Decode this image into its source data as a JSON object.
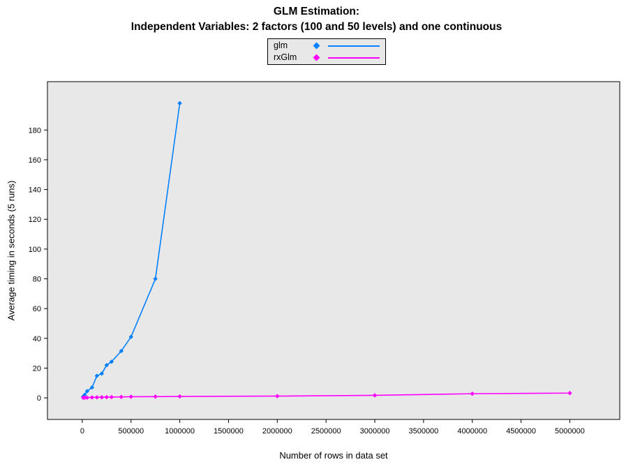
{
  "header": {
    "title_line1": "GLM Estimation:",
    "title_line2": "Independent Variables: 2 factors (100 and 50 levels) and one continuous"
  },
  "chart_data": {
    "type": "line",
    "title": "GLM Estimation: Independent Variables: 2 factors (100 and 50 levels) and one continuous",
    "xlabel": "Number of rows in data set",
    "ylabel": "Average timing in seconds (5 runs)",
    "xlim": [
      -357000,
      5512000
    ],
    "ylim": [
      -14.5,
      212.5
    ],
    "grid": false,
    "legend_position": "top-center",
    "panel_background": "#e8e8e8",
    "x_ticks": {
      "values": [
        0,
        500000,
        1000000,
        1500000,
        2000000,
        2500000,
        3000000,
        3500000,
        4000000,
        4500000,
        5000000
      ],
      "labels": [
        "0",
        "500000",
        "1000000",
        "1500000",
        "2000000",
        "2500000",
        "3000000",
        "3500000",
        "4000000",
        "4500000",
        "5000000"
      ]
    },
    "y_ticks": {
      "values": [
        0,
        20,
        40,
        60,
        80,
        100,
        120,
        140,
        160,
        180
      ],
      "labels": [
        "0",
        "20",
        "40",
        "60",
        "80",
        "100",
        "120",
        "140",
        "160",
        "180"
      ]
    },
    "series": [
      {
        "name": "glm",
        "color": "#0080ff",
        "marker": "diamond",
        "x": [
          10000,
          25000,
          50000,
          100000,
          150000,
          200000,
          250000,
          300000,
          400000,
          500000,
          750000,
          1000000
        ],
        "y": [
          0.9,
          2.1,
          4.5,
          7.0,
          14.8,
          16.3,
          22.0,
          24.3,
          31.5,
          41.0,
          80.0,
          198.0
        ]
      },
      {
        "name": "rxGlm",
        "color": "#ff00ff",
        "marker": "diamond",
        "x": [
          10000,
          25000,
          50000,
          100000,
          150000,
          200000,
          250000,
          300000,
          400000,
          500000,
          750000,
          1000000,
          2000000,
          3000000,
          4000000,
          5000000
        ],
        "y": [
          0.1,
          0.15,
          0.2,
          0.3,
          0.35,
          0.4,
          0.5,
          0.55,
          0.65,
          0.75,
          0.85,
          0.95,
          1.2,
          1.7,
          2.8,
          3.2
        ]
      }
    ]
  }
}
